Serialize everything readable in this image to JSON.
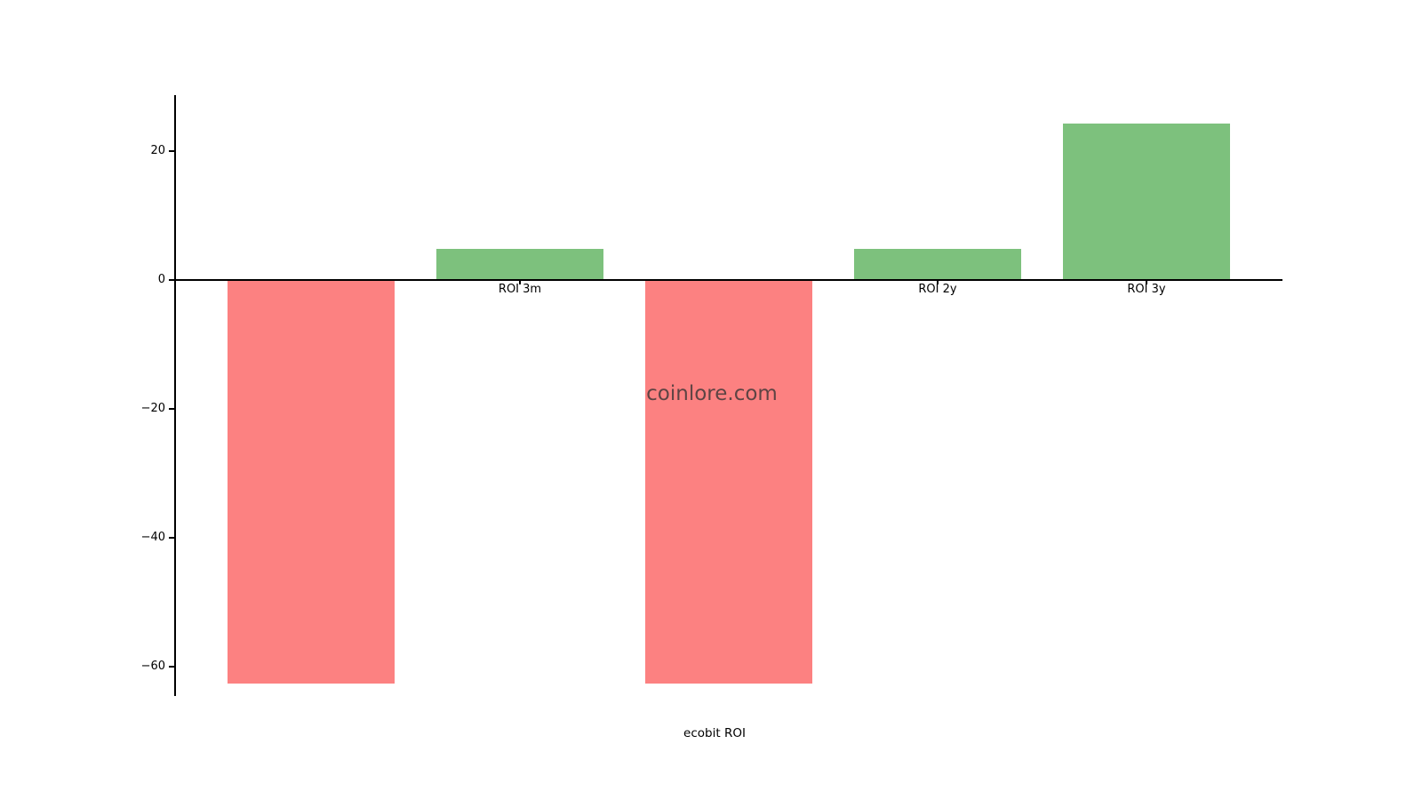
{
  "watermark": {
    "text": "coinlore.com",
    "color": "#333333"
  },
  "chart_data": {
    "type": "bar",
    "title": "ecobit ROI",
    "xlabel": "ecobit ROI",
    "ylabel": "",
    "categories": [
      "",
      "ROI 3m",
      "",
      "ROI 2y",
      "ROI 3y"
    ],
    "values": [
      -62.6,
      4.8,
      -62.6,
      4.8,
      24.3
    ],
    "bar_colors": [
      "#fc8181",
      "#7dc17d",
      "#fc8181",
      "#7dc17d",
      "#7dc17d"
    ],
    "positive_color": "#7dc17d",
    "negative_color": "#fc8181",
    "ytick_values": [
      20,
      0,
      -20,
      -40,
      -60
    ],
    "yticklabels": [
      "20",
      "0",
      "−20",
      "−40",
      "−60"
    ],
    "ylim": [
      -64.6,
      28.7
    ],
    "grid": false,
    "legend": "none",
    "axis_color": "#000000",
    "background": "#ffffff"
  }
}
